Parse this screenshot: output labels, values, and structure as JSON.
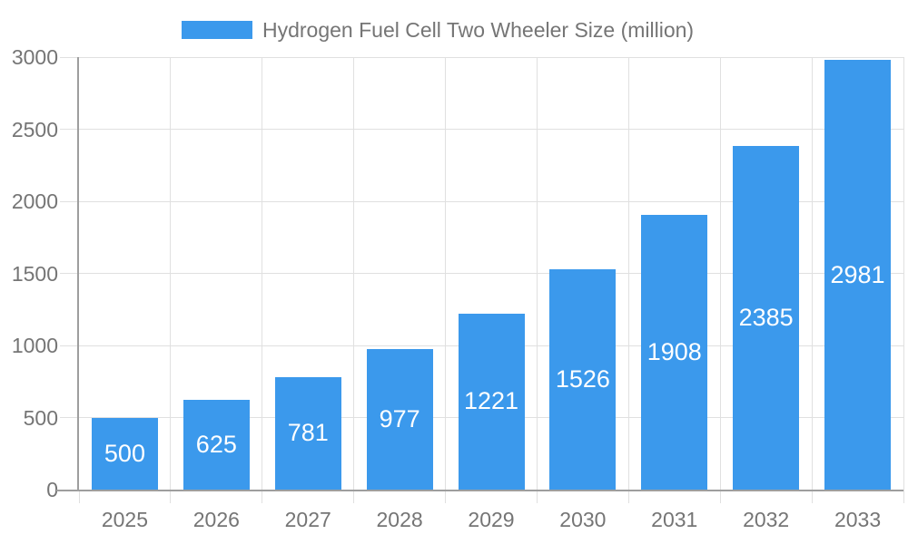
{
  "legend": {
    "label": "Hydrogen Fuel Cell Two Wheeler Size (million)"
  },
  "chart_data": {
    "type": "bar",
    "title": "Hydrogen Fuel Cell Two Wheeler Size (million)",
    "legend_position": "top",
    "categories": [
      "2025",
      "2026",
      "2027",
      "2028",
      "2029",
      "2030",
      "2031",
      "2032",
      "2033"
    ],
    "values": [
      500,
      625,
      781,
      977,
      1221,
      1526,
      1908,
      2385,
      2981
    ],
    "series_name": "Hydrogen Fuel Cell Two Wheeler Size (million)",
    "xlabel": "",
    "ylabel": "",
    "ylim": [
      0,
      3000
    ],
    "y_ticks": [
      0,
      500,
      1000,
      1500,
      2000,
      2500,
      3000
    ],
    "grid": true,
    "bar_labels_visible": true,
    "colors": {
      "bar": "#3B99EC",
      "bar_label": "#FFFFFF",
      "axis_text": "#757575",
      "axis_line": "#9E9E9E",
      "gridline": "#E0E0E0",
      "background": "#FFFFFF"
    }
  }
}
